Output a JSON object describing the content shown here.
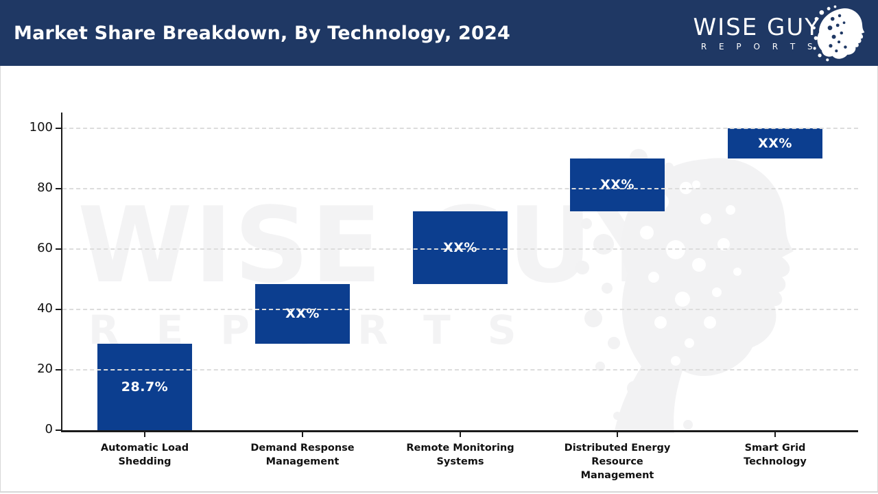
{
  "header": {
    "title": "Market Share Breakdown, By Technology, 2024",
    "logo": {
      "line1": "WISE GUY",
      "line2": "R E P O R T S"
    }
  },
  "watermark": {
    "line1": "WISE GUY",
    "line2": "REPORTS"
  },
  "colors": {
    "header_bg": "#1f3864",
    "bar": "#0c3e8f",
    "gridline": "#dcdcdc",
    "axis": "#1a1a1a",
    "bar_label": "#ffffff",
    "watermark": "#f3f3f4"
  },
  "chart_data": {
    "type": "bar",
    "subtype": "waterfall",
    "title": "Market Share Breakdown, By Technology, 2024",
    "xlabel": "",
    "ylabel": "",
    "ylim": [
      0,
      100
    ],
    "yticks": [
      0,
      20,
      40,
      60,
      80,
      100
    ],
    "grid": true,
    "gridline_style": "dashed",
    "legend": false,
    "categories": [
      "Automatic Load\nShedding",
      "Demand Response\nManagement",
      "Remote Monitoring\nSystems",
      "Distributed Energy\nResource\nManagement",
      "Smart Grid\nTechnology"
    ],
    "series": [
      {
        "name": "Market Share",
        "segments": [
          {
            "start": 0,
            "end": 28.7,
            "label": "28.7%"
          },
          {
            "start": 28.7,
            "end": 48.5,
            "label": "XX%"
          },
          {
            "start": 48.5,
            "end": 72.4,
            "label": "XX%"
          },
          {
            "start": 72.4,
            "end": 90.1,
            "label": "XX%"
          },
          {
            "start": 90.1,
            "end": 100,
            "label": "XX%"
          }
        ]
      }
    ]
  }
}
